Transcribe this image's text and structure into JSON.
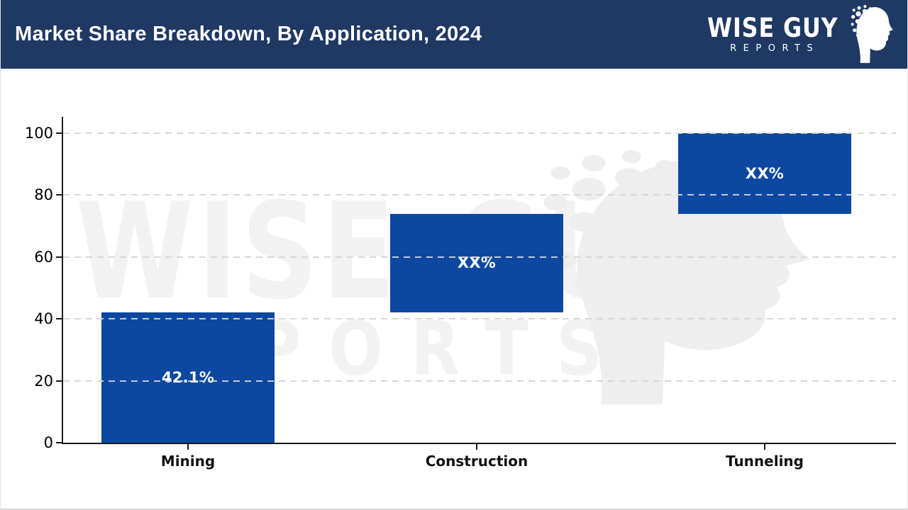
{
  "header": {
    "title": "Market Share Breakdown, By Application, 2024",
    "brand": {
      "line1": "WISE GUY",
      "line2": "REPORTS",
      "face_icon": "dotted-face-profile-icon"
    }
  },
  "watermark": {
    "line1": "WISE GUY",
    "line2": "REPORTS"
  },
  "colors": {
    "header_bg": "#1f3864",
    "title_text": "#ffffff",
    "bar": "#0c48a2",
    "bar_label": "#ffffff",
    "grid": "#d9d9d9",
    "axis": "#1a1a1a",
    "watermark": "#f2f2f2"
  },
  "chart_data": {
    "type": "bar",
    "subtype": "floating-segment-waterfall",
    "title": "Market Share Breakdown, By Application, 2024",
    "xlabel": "",
    "ylabel": "",
    "categories": [
      "Mining",
      "Construction",
      "Tunneling"
    ],
    "segments": [
      {
        "category": "Mining",
        "start": 0,
        "end": 42.1,
        "label": "42.1%"
      },
      {
        "category": "Construction",
        "start": 42.1,
        "end": 73.8,
        "label": "XX%"
      },
      {
        "category": "Tunneling",
        "start": 73.8,
        "end": 100,
        "label": "XX%"
      }
    ],
    "ylim": [
      0,
      100
    ],
    "yticks": [
      0,
      20,
      40,
      60,
      80,
      100
    ],
    "grid": {
      "horizontal": true,
      "style": "dashed"
    },
    "legend": null
  }
}
